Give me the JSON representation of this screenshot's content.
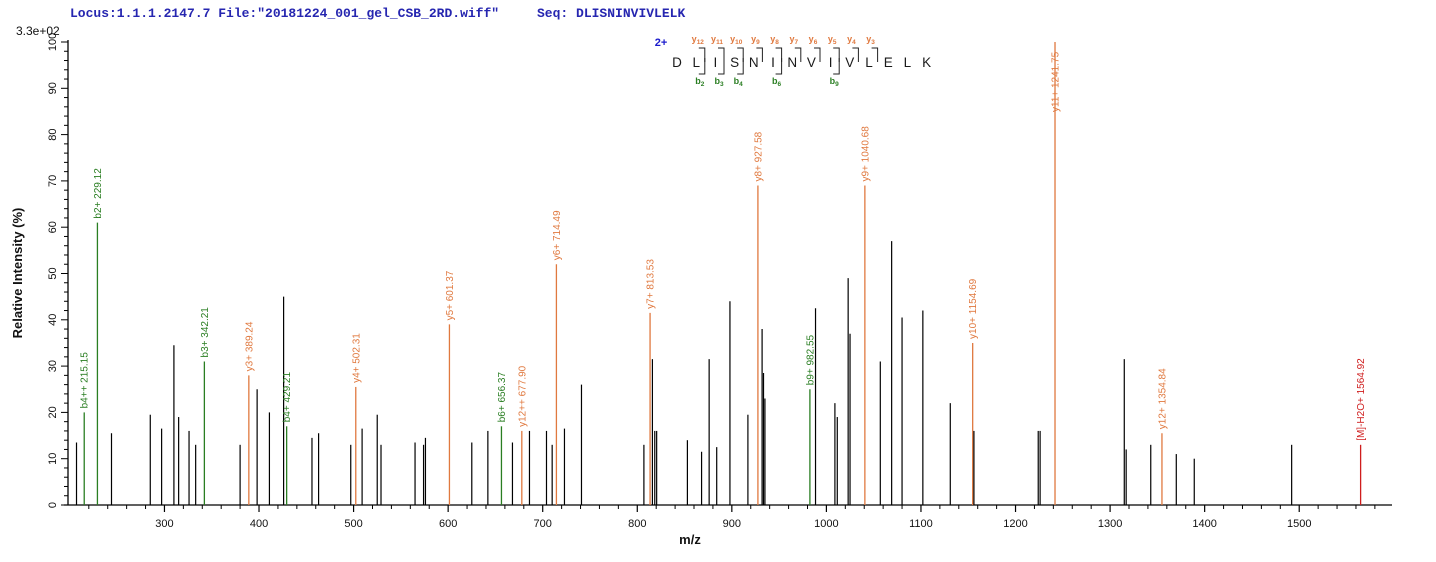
{
  "header": {
    "locus_file": "Locus:1.1.1.2147.7 File:\"20181224_001_gel_CSB_2RD.wiff\"",
    "seq_label": "Seq:",
    "seq_value": "DLISNINVIVLELK",
    "intensity_scale": "3.3e+02"
  },
  "sequence_annotation": {
    "charge": "2+",
    "residues": [
      "D",
      "L",
      "I",
      "S",
      "N",
      "I",
      "N",
      "V",
      "I",
      "V",
      "L",
      "E",
      "L",
      "K"
    ],
    "y_cuts": [
      {
        "label": "y",
        "sub": "12",
        "after": 2
      },
      {
        "label": "y",
        "sub": "11",
        "after": 3
      },
      {
        "label": "y",
        "sub": "10",
        "after": 4
      },
      {
        "label": "y",
        "sub": "9",
        "after": 5
      },
      {
        "label": "y",
        "sub": "8",
        "after": 6
      },
      {
        "label": "y",
        "sub": "7",
        "after": 7
      },
      {
        "label": "y",
        "sub": "6",
        "after": 8
      },
      {
        "label": "y",
        "sub": "5",
        "after": 9
      },
      {
        "label": "y",
        "sub": "4",
        "after": 10
      },
      {
        "label": "y",
        "sub": "3",
        "after": 11
      }
    ],
    "b_cuts": [
      {
        "label": "b",
        "sub": "2",
        "after": 2
      },
      {
        "label": "b",
        "sub": "3",
        "after": 3
      },
      {
        "label": "b",
        "sub": "4",
        "after": 4
      },
      {
        "label": "b",
        "sub": "6",
        "after": 6
      },
      {
        "label": "b",
        "sub": "9",
        "after": 9
      }
    ]
  },
  "chart_data": {
    "type": "bar",
    "subtype": "mass-spectrum-stick-plot",
    "title": "",
    "xlabel": "m/z",
    "ylabel": "Relative  Intensity (%)",
    "xlim": [
      198,
      1596
    ],
    "ylim": [
      0,
      100
    ],
    "x_major_ticks": [
      300,
      400,
      500,
      600,
      700,
      800,
      900,
      1000,
      1100,
      1200,
      1300,
      1400,
      1500
    ],
    "x_minor_step": 20,
    "y_major_ticks": [
      0,
      10,
      20,
      30,
      40,
      50,
      60,
      70,
      80,
      90,
      100
    ],
    "y_minor_step": 2,
    "grid": false,
    "legend": "none",
    "colors": {
      "b_ion": "#2a7e22",
      "y_ion": "#e0793f",
      "precursor": "#cf1d1d",
      "peak": "#000000",
      "axis": "#000000"
    },
    "labeled_peaks": [
      {
        "label": "b4++",
        "mz": 215.15,
        "intensity": 20,
        "series": "b_ion"
      },
      {
        "label": "b2+",
        "mz": 229.12,
        "intensity": 61,
        "series": "b_ion"
      },
      {
        "label": "b3+",
        "mz": 342.21,
        "intensity": 31,
        "series": "b_ion"
      },
      {
        "label": "y3+",
        "mz": 389.24,
        "intensity": 28,
        "series": "y_ion"
      },
      {
        "label": "b4+",
        "mz": 429.21,
        "intensity": 17,
        "series": "b_ion"
      },
      {
        "label": "y4+",
        "mz": 502.31,
        "intensity": 25.5,
        "series": "y_ion"
      },
      {
        "label": "y5+",
        "mz": 601.37,
        "intensity": 39,
        "series": "y_ion"
      },
      {
        "label": "b6+",
        "mz": 656.37,
        "intensity": 17,
        "series": "b_ion"
      },
      {
        "label": "y12++",
        "mz": 677.9,
        "intensity": 16,
        "series": "y_ion"
      },
      {
        "label": "y6+",
        "mz": 714.49,
        "intensity": 52,
        "series": "y_ion"
      },
      {
        "label": "y7+",
        "mz": 813.53,
        "intensity": 41.5,
        "series": "y_ion"
      },
      {
        "label": "y8+",
        "mz": 927.58,
        "intensity": 69,
        "series": "y_ion"
      },
      {
        "label": "b9+",
        "mz": 982.55,
        "intensity": 25,
        "series": "b_ion"
      },
      {
        "label": "y9+",
        "mz": 1040.68,
        "intensity": 69,
        "series": "y_ion"
      },
      {
        "label": "y10+",
        "mz": 1154.69,
        "intensity": 35,
        "series": "y_ion"
      },
      {
        "label": "y11+",
        "mz": 1241.75,
        "intensity": 100,
        "series": "y_ion"
      },
      {
        "label": "y12+",
        "mz": 1354.84,
        "intensity": 15.5,
        "series": "y_ion"
      },
      {
        "label": "[M]-H2O+",
        "mz": 1564.92,
        "intensity": 13,
        "series": "precursor"
      }
    ],
    "unlabeled_peaks": [
      [
        207,
        13.5
      ],
      [
        244,
        15.5
      ],
      [
        285,
        19.5
      ],
      [
        297,
        16.5
      ],
      [
        310,
        34.5
      ],
      [
        315,
        19
      ],
      [
        326,
        16
      ],
      [
        333,
        13
      ],
      [
        380,
        13
      ],
      [
        398,
        25
      ],
      [
        411,
        20
      ],
      [
        426,
        45
      ],
      [
        456,
        14.5
      ],
      [
        463,
        15.5
      ],
      [
        497,
        13
      ],
      [
        509,
        16.5
      ],
      [
        525,
        19.5
      ],
      [
        529,
        13
      ],
      [
        565,
        13.5
      ],
      [
        574,
        13
      ],
      [
        576,
        14.5
      ],
      [
        625,
        13.5
      ],
      [
        642,
        16
      ],
      [
        668,
        13.5
      ],
      [
        686,
        16
      ],
      [
        704,
        16
      ],
      [
        710,
        13
      ],
      [
        723,
        16.5
      ],
      [
        741,
        26
      ],
      [
        807,
        13
      ],
      [
        816,
        31.5
      ],
      [
        818.5,
        16
      ],
      [
        820.5,
        16
      ],
      [
        853,
        14
      ],
      [
        868,
        11.5
      ],
      [
        876,
        31.5
      ],
      [
        884,
        12.5
      ],
      [
        898,
        44
      ],
      [
        917,
        19.5
      ],
      [
        932,
        38
      ],
      [
        933.5,
        28.5
      ],
      [
        935,
        23
      ],
      [
        988.5,
        42.5
      ],
      [
        1009,
        22
      ],
      [
        1011.5,
        19
      ],
      [
        1023,
        49
      ],
      [
        1025,
        37
      ],
      [
        1057,
        31
      ],
      [
        1069,
        57
      ],
      [
        1080,
        40.5
      ],
      [
        1102,
        42
      ],
      [
        1131,
        22
      ],
      [
        1156,
        16
      ],
      [
        1224,
        16
      ],
      [
        1226,
        16
      ],
      [
        1315,
        31.5
      ],
      [
        1317,
        12
      ],
      [
        1343,
        13
      ],
      [
        1370,
        11
      ],
      [
        1389,
        10
      ],
      [
        1492,
        13
      ]
    ]
  }
}
